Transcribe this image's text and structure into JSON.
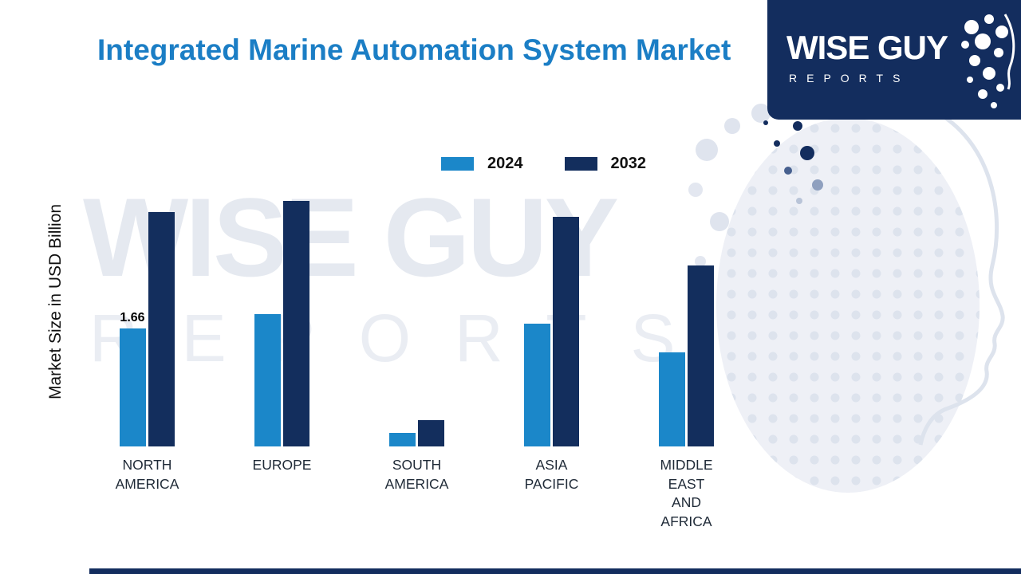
{
  "title": "Integrated Marine Automation System Market",
  "logo": {
    "wordmark": "WISE GUY",
    "subtext": "REPORTS"
  },
  "watermark": {
    "line1": "WISE GUY",
    "line2": "REPORTS"
  },
  "legend": [
    {
      "label": "2024",
      "color": "#1b87c9"
    },
    {
      "label": "2032",
      "color": "#132e5d"
    }
  ],
  "chart_data": {
    "type": "bar",
    "title": "Integrated Marine Automation System Market",
    "xlabel": "",
    "ylabel": "Market Size in USD Billion",
    "unit": "USD Billion",
    "categories": [
      "NORTH AMERICA",
      "EUROPE",
      "SOUTH AMERICA",
      "ASIA PACIFIC",
      "MIDDLE EAST AND AFRICA"
    ],
    "tick_label_lines": [
      [
        "NORTH",
        "AMERICA"
      ],
      [
        "EUROPE"
      ],
      [
        "SOUTH",
        "AMERICA"
      ],
      [
        "ASIA",
        "PACIFIC"
      ],
      [
        "MIDDLE",
        "EAST",
        "AND",
        "AFRICA"
      ]
    ],
    "series": [
      {
        "name": "2024",
        "color": "#1b87c9",
        "values": [
          1.66,
          1.86,
          0.19,
          1.73,
          1.33
        ]
      },
      {
        "name": "2032",
        "color": "#132e5d",
        "values": [
          3.3,
          3.46,
          0.37,
          3.24,
          2.55
        ]
      }
    ],
    "annotations": [
      {
        "category_index": 0,
        "series_index": 0,
        "text": "1.66"
      }
    ],
    "ylim": [
      0,
      3.6
    ],
    "grid": false,
    "legend_position": "top-center"
  },
  "colors": {
    "title": "#1b7ec5",
    "accent_2024": "#1b87c9",
    "accent_2032": "#132e5d",
    "logo_background": "#132d5e",
    "footer_bar": "#132d5e",
    "watermark": "#e5e9f0"
  }
}
